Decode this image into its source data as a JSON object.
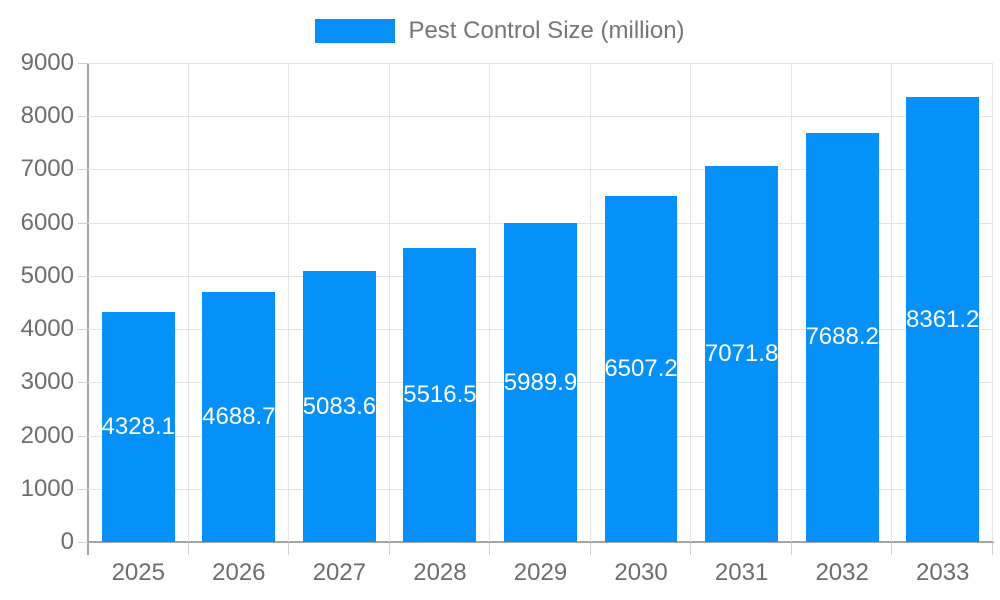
{
  "chart_data": {
    "type": "bar",
    "title": "",
    "legend_label": "Pest Control Size (million)",
    "legend_position": "top-center",
    "categories": [
      "2025",
      "2026",
      "2027",
      "2028",
      "2029",
      "2030",
      "2031",
      "2032",
      "2033"
    ],
    "values": [
      4328.1,
      4688.7,
      5083.6,
      5516.5,
      5989.9,
      6507.2,
      7071.8,
      7688.2,
      8361.2
    ],
    "value_labels": [
      "4328.1",
      "4688.7",
      "5083.6",
      "5516.5",
      "5989.9",
      "6507.2",
      "7071.8",
      "7688.2",
      "8361.2"
    ],
    "value_labels_position": "inside-center",
    "xlabel": "",
    "ylabel": "",
    "ylim": [
      0,
      9000
    ],
    "ytick_step": 1000,
    "ytick_labels": [
      "0",
      "1000",
      "2000",
      "3000",
      "4000",
      "5000",
      "6000",
      "7000",
      "8000",
      "9000"
    ],
    "grid": "horizontal and vertical gridlines on"
  },
  "colors": {
    "bar": "#0590FA",
    "grid": "#e4e4e4",
    "axis": "#a5a5a5",
    "tick": "#cfcfcf",
    "axis_label": "#6d6d6d",
    "legend_text": "#757575",
    "value_label": "#ffffff",
    "background": "#ffffff"
  }
}
